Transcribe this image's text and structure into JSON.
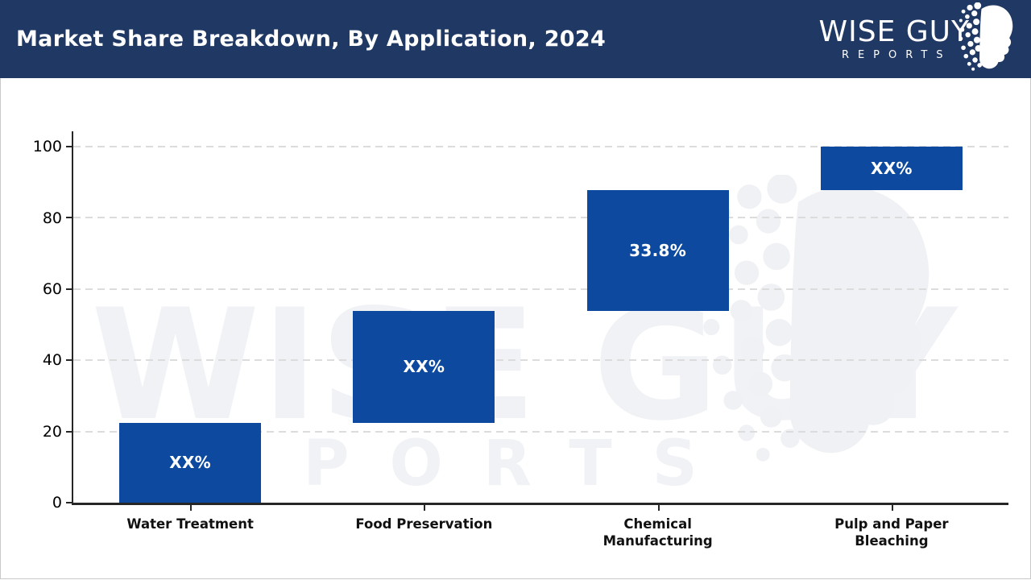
{
  "header": {
    "title": "Market Share Breakdown, By Application, 2024",
    "bg_color": "#203864",
    "logo": {
      "brand": "WISE GUY",
      "sub": "REPORTS"
    }
  },
  "watermark": {
    "brand": "WISE GUY",
    "sub": "REPORTS"
  },
  "chart_data": {
    "type": "bar",
    "variant": "waterfall",
    "title": "Market Share Breakdown, By Application, 2024",
    "categories": [
      "Water Treatment",
      "Food Preservation",
      "Chemical Manufacturing",
      "Pulp and Paper Bleaching"
    ],
    "series": [
      {
        "name": "Market Share",
        "starts": [
          0,
          22.5,
          53.9,
          87.7
        ],
        "ends": [
          22.5,
          53.9,
          87.7,
          100
        ],
        "values": [
          22.5,
          31.4,
          33.8,
          12.3
        ]
      }
    ],
    "bar_labels": [
      "XX%",
      "XX%",
      "33.8%",
      "XX%"
    ],
    "xlabel": "",
    "ylabel": "",
    "yticks": [
      0,
      20,
      40,
      60,
      80,
      100
    ],
    "ylim": [
      0,
      105
    ],
    "grid": "horizontal-dashed",
    "legend": "none",
    "bar_color": "#0d4a9f",
    "axis_color": "#262626",
    "gridline_color": "#dcdcdc",
    "label_color": "#ffffff"
  }
}
